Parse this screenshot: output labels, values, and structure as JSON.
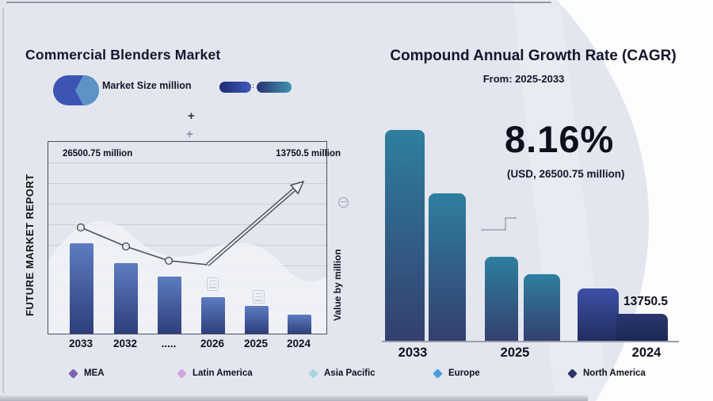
{
  "left_panel": {
    "title": "Commercial Blenders Market",
    "legend_label": "Market Size million",
    "pill_separator": ":",
    "plus_mark": "+",
    "watermark_vertical": "FUTURE MARKET REPORT",
    "chart": {
      "annotation_left": "26500.75 million",
      "annotation_right": "13750.5 million",
      "ylabel": "Value by million",
      "categories": [
        "2033",
        "2032",
        ".....",
        "2026",
        "2025",
        "2024"
      ]
    }
  },
  "right_panel": {
    "title": "Compound Annual Growth Rate (CAGR)",
    "subtitle": "From: 2025-2033",
    "cagr_value": "8.16%",
    "cagr_note": "(USD, 26500.75 million)",
    "bar_value_label": "13750.5",
    "categories": [
      "2033",
      "2025",
      "2024"
    ]
  },
  "legend": {
    "items": [
      {
        "label": "MEA",
        "color": "#7e63b5"
      },
      {
        "label": "Latin America",
        "color": "#d4a7da"
      },
      {
        "label": "Asia Pacific",
        "color": "#aad5e4"
      },
      {
        "label": "Europe",
        "color": "#4d9ede"
      },
      {
        "label": "North America",
        "color": "#2b3765"
      }
    ]
  },
  "colors": {
    "background": "#e3e6ee",
    "left_bar_top": "#5d7cc1",
    "left_bar_bottom": "#2e3e7b",
    "right_bar_teal_top": "#2e7f9e",
    "right_bar_teal_bottom": "#343f6e",
    "right_bar_indigo_top": "#3e50a6",
    "right_bar_indigo_bottom": "#212d5f",
    "right_bar_dark_top": "#2a3670",
    "right_bar_dark_bottom": "#1c2852",
    "accent_capsule_left": "#3c55b5",
    "accent_capsule_right": "#5e93c8"
  },
  "chart_data": [
    {
      "type": "bar",
      "title": "Commercial Blenders Market - Market Size million",
      "ylabel": "Value by million",
      "xlabel": "",
      "categories": [
        "2033",
        "2032",
        ".....",
        "2026",
        "2025",
        "2024"
      ],
      "series": [
        {
          "name": "Market Size (relative height %, unlabeled axis)",
          "values": [
            100,
            78,
            63,
            40,
            31,
            21
          ]
        }
      ],
      "annotations": [
        "26500.75 million (top-left)",
        "13750.5 million (top-right)"
      ],
      "overlay_line": {
        "type": "line",
        "note": "declining marker line over first four bars, then hollow double-line arrow rising to top-right",
        "marker_categories": [
          "2033",
          "2032",
          ".....",
          "2026"
        ]
      },
      "grid": "horizontal",
      "legend_position": "none"
    },
    {
      "type": "bar",
      "title": "Compound Annual Growth Rate (CAGR)",
      "subtitle": "From: 2025-2033",
      "categories": [
        "2033",
        "2025",
        "2024"
      ],
      "series": [
        {
          "name": "bar-1 (relative height %)",
          "values": [
            100,
            40,
            25
          ]
        },
        {
          "name": "bar-2 (relative height %)",
          "values": [
            70,
            32,
            13
          ]
        }
      ],
      "data_labels": [
        {
          "category": "2024",
          "series": "bar-2",
          "label": "13750.5"
        }
      ],
      "annotations": [
        "8.16%",
        "(USD, 26500.75 million)"
      ],
      "grid": "off",
      "legend_position": "bottom",
      "legend_entries": [
        "MEA",
        "Latin America",
        "Asia Pacific",
        "Europe",
        "North America"
      ]
    }
  ]
}
